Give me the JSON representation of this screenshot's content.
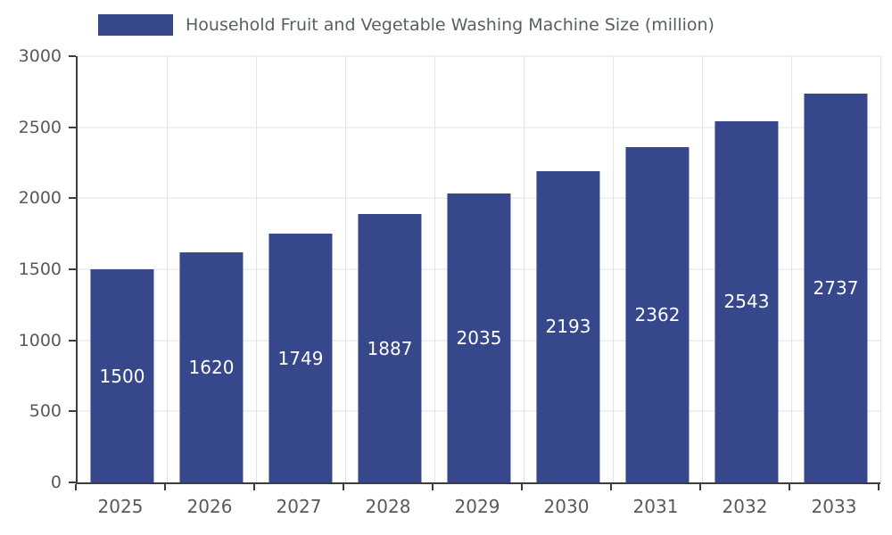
{
  "chart_data": {
    "type": "bar",
    "title": "Household Fruit and Vegetable Washing Machine Size (million)",
    "categories": [
      "2025",
      "2026",
      "2027",
      "2028",
      "2029",
      "2030",
      "2031",
      "2032",
      "2033"
    ],
    "values": [
      1500,
      1620,
      1749,
      1887,
      2035,
      2193,
      2362,
      2543,
      2737
    ],
    "xlabel": "",
    "ylabel": "",
    "ylim": [
      0,
      3000
    ],
    "yticks": [
      0,
      500,
      1000,
      1500,
      2000,
      2500,
      3000
    ],
    "legend_position": "top",
    "grid": true,
    "bar_color": "#36478c",
    "value_label_color": "#ffffff",
    "axis_text_color": "#595959",
    "grid_color": "#e3e3e3",
    "axis_line_color": "#3d3d3d"
  }
}
